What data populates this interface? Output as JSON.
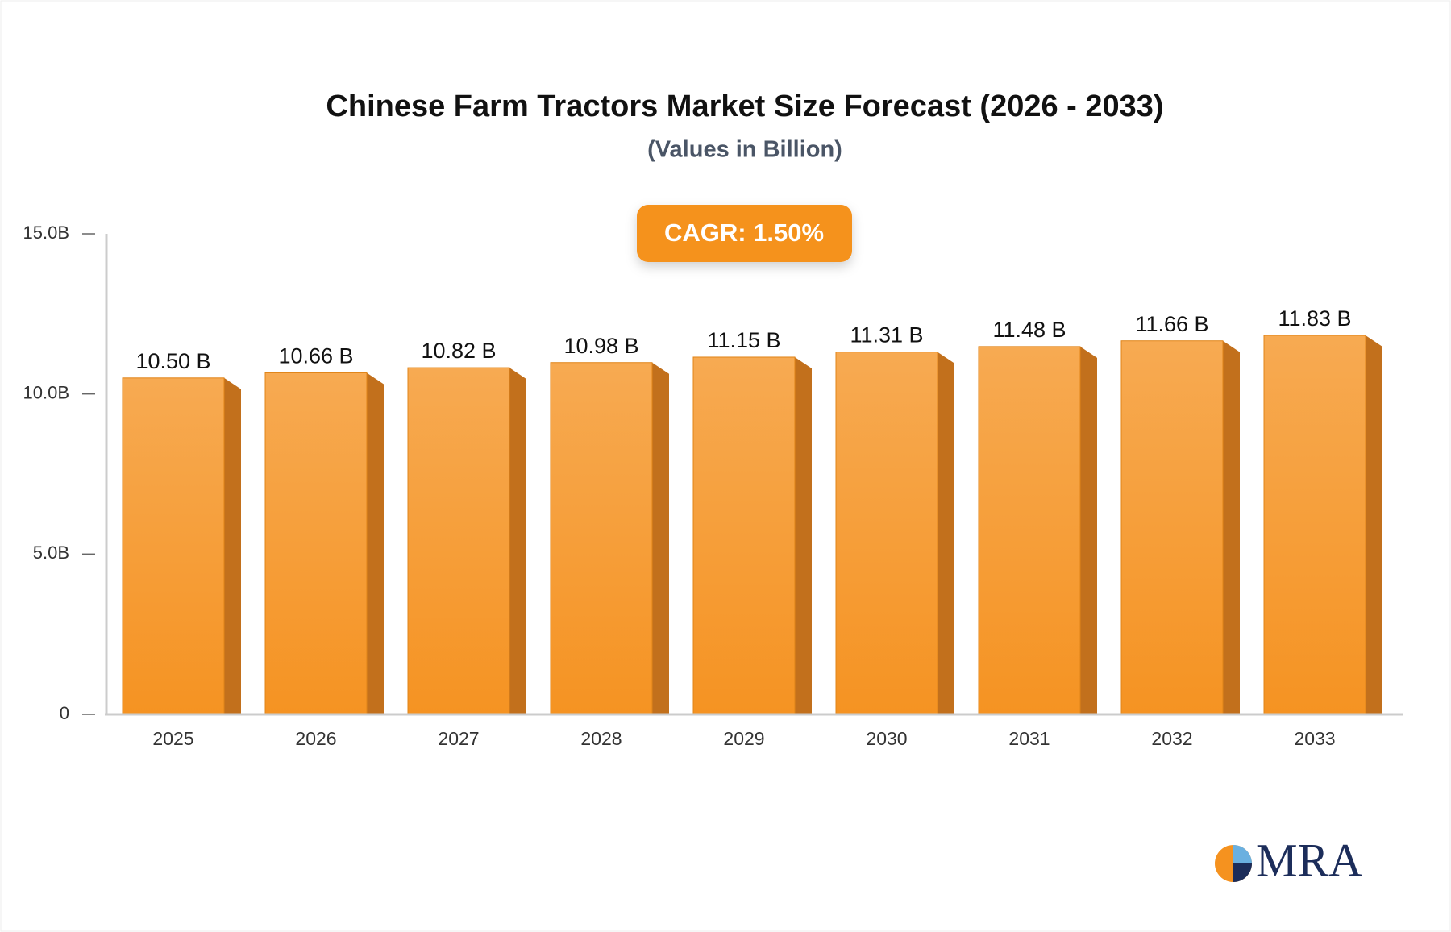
{
  "chart_data": {
    "type": "bar3d",
    "title": "Chinese Farm Tractors Market Size Forecast (2026 - 2033)",
    "subtitle": "(Values in Billion)",
    "annotation": "CAGR: 1.50%",
    "categories": [
      "2025",
      "2026",
      "2027",
      "2028",
      "2029",
      "2030",
      "2031",
      "2032",
      "2033"
    ],
    "values": [
      10.5,
      10.66,
      10.82,
      10.98,
      11.15,
      11.31,
      11.48,
      11.66,
      11.83
    ],
    "value_labels": [
      "10.50 B",
      "10.66 B",
      "10.82 B",
      "10.98 B",
      "11.15 B",
      "11.31 B",
      "11.48 B",
      "11.66 B",
      "11.83 B"
    ],
    "color": "#f59a2e",
    "ylim": [
      0,
      15
    ],
    "yticks": [
      0,
      {
        "value": 5,
        "label": "5.0B"
      },
      {
        "value": 10,
        "label": "10.0B"
      },
      {
        "value": 15,
        "label": "15.0B"
      }
    ],
    "grid": false,
    "logo": "MRA"
  }
}
